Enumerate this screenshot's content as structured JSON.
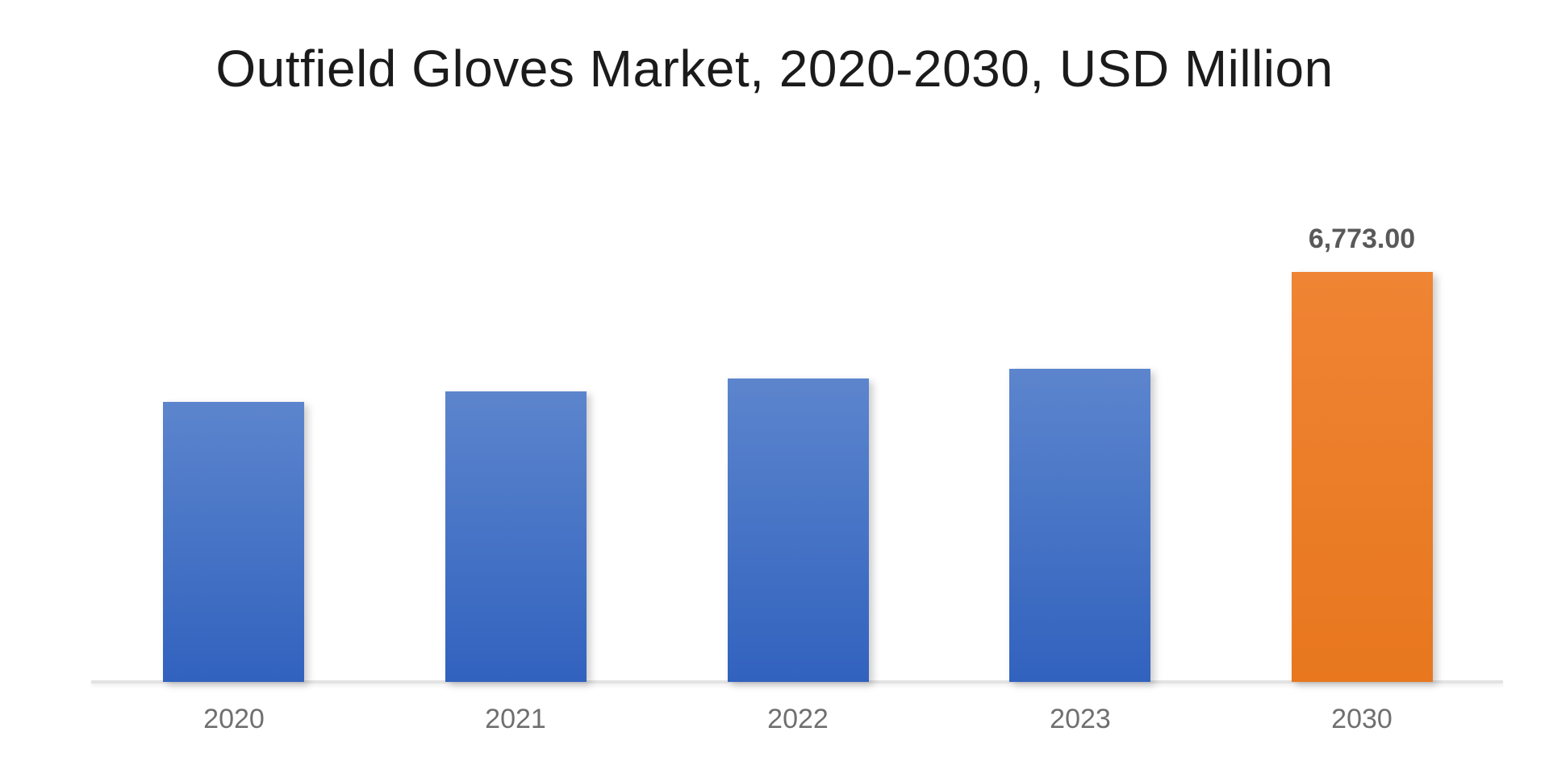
{
  "page": {
    "background": "#ffffff"
  },
  "chart_data": {
    "type": "bar",
    "title": "Outfield Gloves Market, 2020-2030, USD Million",
    "categories": [
      "2020",
      "2021",
      "2022",
      "2023",
      "2030"
    ],
    "values": [
      4630,
      4800,
      5010,
      5170,
      6773
    ],
    "data_labels": [
      "",
      "",
      "",
      "",
      "6,773.00"
    ],
    "unit": "USD Million",
    "xlabel": "",
    "ylabel": "",
    "ylim": [
      0,
      7200
    ],
    "grid": false,
    "legend": false,
    "bar_fills": [
      {
        "top": "#5C85CD",
        "bottom": "#3162BE"
      },
      {
        "top": "#5C85CD",
        "bottom": "#3162BE"
      },
      {
        "top": "#5C85CD",
        "bottom": "#3162BE"
      },
      {
        "top": "#5C85CD",
        "bottom": "#3162BE"
      },
      {
        "top": "#EF8434",
        "bottom": "#E8771E"
      }
    ],
    "colors": {
      "blue_series": "#4472C4",
      "orange_series": "#ED7D31",
      "title_text": "#1B1B1B",
      "axis_label_text": "#6F6F6F",
      "data_label_text": "#595959",
      "axis_line": "#E3E3E3"
    }
  }
}
